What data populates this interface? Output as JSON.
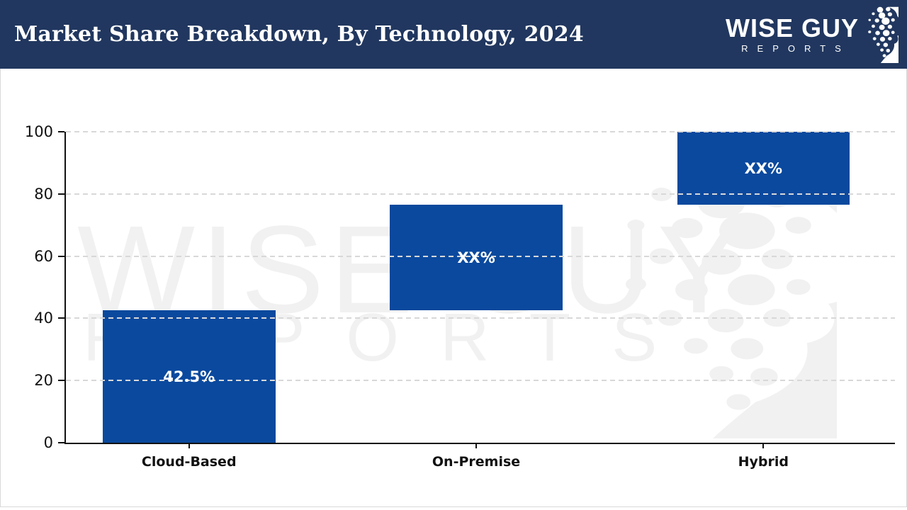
{
  "header": {
    "title": "Market Share Breakdown, By Technology, 2024",
    "logo": {
      "wordmark": "WISE GUY",
      "subtext": "REPORTS"
    }
  },
  "watermark": {
    "wordmark": "WISE GUY",
    "subtext": "REPORTS"
  },
  "colors": {
    "background": "#ffffff",
    "header_bg": "#21375f",
    "card_border": "#d9d9d9",
    "bar_fill": "#0a499e",
    "bar_label": "#ffffff",
    "gridline": "#d8d8d8",
    "axis": "#111111",
    "watermark": "#f1f1f1"
  },
  "chart_data": {
    "type": "bar",
    "subtype": "floating waterfall-style stacked percentage bars",
    "title": "Market Share Breakdown, By Technology, 2024",
    "categories": [
      "Cloud-Based",
      "On-Premise",
      "Hybrid"
    ],
    "segments": [
      {
        "category": "Cloud-Based",
        "start": 0,
        "end": 42.5,
        "value": 42.5,
        "label": "42.5%"
      },
      {
        "category": "On-Premise",
        "start": 42.5,
        "end": 76.5,
        "value": 34,
        "label": "XX%"
      },
      {
        "category": "Hybrid",
        "start": 76.5,
        "end": 100,
        "value": 23.5,
        "label": "XX%"
      }
    ],
    "xlabel": "",
    "ylabel": "",
    "ylim": [
      0,
      100
    ],
    "yticks": [
      0,
      20,
      40,
      60,
      80,
      100
    ],
    "grid": "horizontal dashed gridlines drawn above bars",
    "legend": "none",
    "bar_color": "#0a499e"
  }
}
